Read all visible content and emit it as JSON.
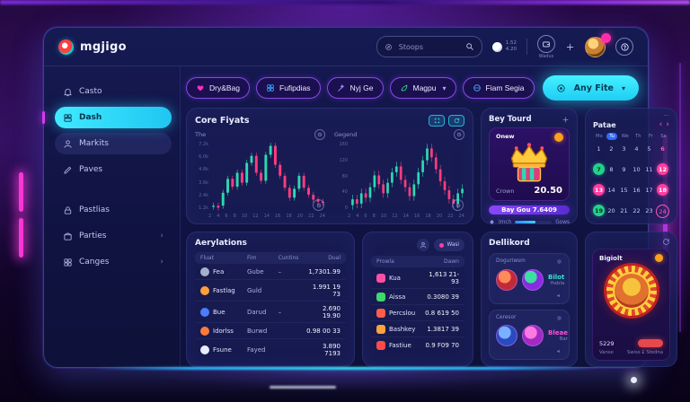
{
  "app": {
    "logo": "mgjigo"
  },
  "titlebar": {
    "search_placeholder": "Stoops",
    "balance_top": "1.52",
    "balance_bottom": "4.20",
    "wallet_label": "Wadus"
  },
  "sidebar": {
    "items": [
      {
        "label": "Casto",
        "icon": "bell",
        "active": false
      },
      {
        "label": "Dash",
        "icon": "grid",
        "active": true
      },
      {
        "label": "Markits",
        "icon": "user",
        "active": false,
        "highlight": true
      },
      {
        "label": "Paves",
        "icon": "pen",
        "active": false
      },
      {
        "label": "Pastlias",
        "icon": "lock",
        "active": false,
        "gap": true
      },
      {
        "label": "Parties",
        "icon": "box",
        "active": false,
        "chevron": true
      },
      {
        "label": "Canges",
        "icon": "squares",
        "active": false,
        "chevron": true
      }
    ]
  },
  "filters": {
    "chips": [
      {
        "label": "Dry&Bag",
        "icon": "heart",
        "icon_color": "#ff2ec4"
      },
      {
        "label": "Fufipdias",
        "icon": "squares",
        "icon_color": "#35a6ff"
      },
      {
        "label": "Nyj Ge",
        "icon": "wand",
        "icon_color": "#b08cff"
      },
      {
        "label": "Magpu",
        "icon": "leaf",
        "icon_color": "#35e08a",
        "chevron": true
      },
      {
        "label": "Fiam Segia",
        "icon": "orb",
        "icon_color": "#4aa8ff"
      }
    ],
    "cta": {
      "label": "Any Fite"
    }
  },
  "charts": {
    "title": "Core Fiyats"
  },
  "chart_data": [
    {
      "type": "candlestick",
      "title": "The",
      "y_ticks": [
        "7.2k",
        "6.0k",
        "4.8k",
        "3.6k",
        "2.4k",
        "1.2k"
      ],
      "x_ticks": [
        "2",
        "4",
        "6",
        "8",
        "10",
        "12",
        "14",
        "16",
        "18",
        "20",
        "22",
        "24"
      ],
      "up_color": "#2fd7b0",
      "down_color": "#ff3d7e",
      "candles": [
        [
          28,
          29
        ],
        [
          29,
          27
        ],
        [
          29,
          42
        ],
        [
          42,
          56
        ],
        [
          56,
          48
        ],
        [
          48,
          62
        ],
        [
          62,
          52
        ],
        [
          52,
          72
        ],
        [
          72,
          79
        ],
        [
          79,
          62
        ],
        [
          62,
          54
        ],
        [
          54,
          80
        ],
        [
          80,
          89
        ],
        [
          89,
          70
        ],
        [
          70,
          59
        ],
        [
          59,
          47
        ],
        [
          47,
          37
        ],
        [
          37,
          46
        ],
        [
          46,
          59
        ],
        [
          59,
          47
        ],
        [
          47,
          40
        ],
        [
          40,
          35
        ],
        [
          35,
          33
        ],
        [
          33,
          32
        ]
      ]
    },
    {
      "type": "candlestick",
      "title": "Gegend",
      "y_ticks": [
        "160",
        "120",
        "80",
        "40",
        "0"
      ],
      "x_ticks": [
        "2",
        "4",
        "6",
        "8",
        "10",
        "12",
        "14",
        "16",
        "18",
        "20",
        "22",
        "24"
      ],
      "up_color": "#2fd7b0",
      "down_color": "#ff3d7e",
      "candles": [
        [
          30,
          34
        ],
        [
          34,
          31
        ],
        [
          31,
          38
        ],
        [
          38,
          35
        ],
        [
          35,
          42
        ],
        [
          42,
          50
        ],
        [
          50,
          44
        ],
        [
          44,
          38
        ],
        [
          38,
          45
        ],
        [
          45,
          52
        ],
        [
          52,
          56
        ],
        [
          56,
          47
        ],
        [
          47,
          42
        ],
        [
          42,
          36
        ],
        [
          36,
          44
        ],
        [
          44,
          52
        ],
        [
          52,
          60
        ],
        [
          60,
          68
        ],
        [
          68,
          62
        ],
        [
          62,
          54
        ],
        [
          54,
          46
        ],
        [
          46,
          40
        ],
        [
          40,
          34
        ],
        [
          34,
          31
        ],
        [
          31,
          38
        ],
        [
          38,
          41
        ]
      ]
    }
  ],
  "buy_panel": {
    "title": "Bey Tourd",
    "badge": "Onew",
    "item_name": "Crown",
    "price": "20.50",
    "button": "Bay Gou 7.6409",
    "progress_left": "Imch",
    "progress_right": "Gows",
    "progress_pct": 55
  },
  "calendar": {
    "menu": "···",
    "title": "Patae",
    "nav_prev": "‹",
    "nav_next": "›",
    "weekdays": [
      "Mo",
      "Tu",
      "We",
      "Th",
      "Fr",
      "Sa"
    ],
    "active_weekday": 1,
    "days": [
      {
        "n": "1",
        "v": "p"
      },
      {
        "n": "2",
        "v": "p"
      },
      {
        "n": "3",
        "v": "p"
      },
      {
        "n": "4",
        "v": "p"
      },
      {
        "n": "5",
        "v": "p"
      },
      {
        "n": "6",
        "v": "t"
      },
      {
        "n": "7",
        "v": "g"
      },
      {
        "n": "8",
        "v": "p"
      },
      {
        "n": "9",
        "v": "p"
      },
      {
        "n": "10",
        "v": "p"
      },
      {
        "n": "11",
        "v": "p"
      },
      {
        "n": "12",
        "v": "k"
      },
      {
        "n": "13",
        "v": "k"
      },
      {
        "n": "14",
        "v": "p"
      },
      {
        "n": "15",
        "v": "p"
      },
      {
        "n": "16",
        "v": "p"
      },
      {
        "n": "17",
        "v": "p"
      },
      {
        "n": "18",
        "v": "k"
      },
      {
        "n": "19",
        "v": "g"
      },
      {
        "n": "20",
        "v": "p"
      },
      {
        "n": "21",
        "v": "p"
      },
      {
        "n": "22",
        "v": "p"
      },
      {
        "n": "23",
        "v": "p"
      },
      {
        "n": "24",
        "v": "r"
      }
    ]
  },
  "table1": {
    "title": "Aerylations",
    "headers": [
      "Fluat",
      "Fim",
      "Cuntins",
      "Dual"
    ],
    "rows": [
      {
        "name": "Fea",
        "icon_color": "#a8afc9",
        "plan": "Gube",
        "pos": "–",
        "value": "1,7301.99"
      },
      {
        "name": "Fastlag",
        "icon_color": "#ff9f3c",
        "plan": "Guld",
        "pos": "",
        "value": "1.991 19 73"
      },
      {
        "name": "Bue",
        "icon_color": "#4a7dff",
        "plan": "Darud",
        "pos": "–",
        "value": "2.690 19.90"
      },
      {
        "name": "Idorlss",
        "icon_color": "#ff7a3c",
        "plan": "Burwd",
        "pos": "",
        "value": "0.98 00 33"
      },
      {
        "name": "Fsune",
        "icon_color": "#e8ecff",
        "plan": "Fayed",
        "pos": "",
        "value": "3.890 7193"
      }
    ]
  },
  "table2": {
    "action_label": "Wasi",
    "headers": [
      "Prowla",
      "Dawn"
    ],
    "rows": [
      {
        "name": "Kua",
        "icon_color": "#ff4fa3",
        "value": "1,613 21-93"
      },
      {
        "name": "Aissa",
        "icon_color": "#3fd66b",
        "value": "0.3080 39"
      },
      {
        "name": "Percslou",
        "icon_color": "#ff5e4a",
        "value": "0.8 619 50"
      },
      {
        "name": "Bashkey",
        "icon_color": "#ffa23c",
        "value": "1.3817 39"
      },
      {
        "name": "Fastiue",
        "icon_color": "#ff4a4a",
        "value": "0.9 F09 70"
      }
    ]
  },
  "social": {
    "title": "Dellikord",
    "cards": [
      {
        "label": "Doguriwsm",
        "value": "Bilot",
        "sub": "Habla",
        "value_color": "#35e4d0",
        "avatars": [
          {
            "c1": "#ff8a5a",
            "c2": "#c22a3a"
          },
          {
            "c1": "#3ae0a0",
            "c2": "#8a2be2"
          }
        ]
      },
      {
        "label": "Ceresor",
        "value": "Bleae",
        "sub": "Bar",
        "value_color": "#ff4fd8",
        "avatars": [
          {
            "c1": "#7ab0ff",
            "c2": "#2a4ac2"
          },
          {
            "c1": "#ff7ae0",
            "c2": "#a22ac2"
          }
        ]
      }
    ]
  },
  "promo": {
    "title": "Bigiolt",
    "stat": "5229",
    "footer_left": "Vanse",
    "footer_right": "Swiss £ Stedna"
  },
  "colors": {
    "accent_cyan": "#2fe2ff",
    "accent_pink": "#ff2ec4",
    "accent_purple": "#8a3cf0",
    "candle_up": "#2fd7b0",
    "candle_down": "#ff3d7e"
  }
}
